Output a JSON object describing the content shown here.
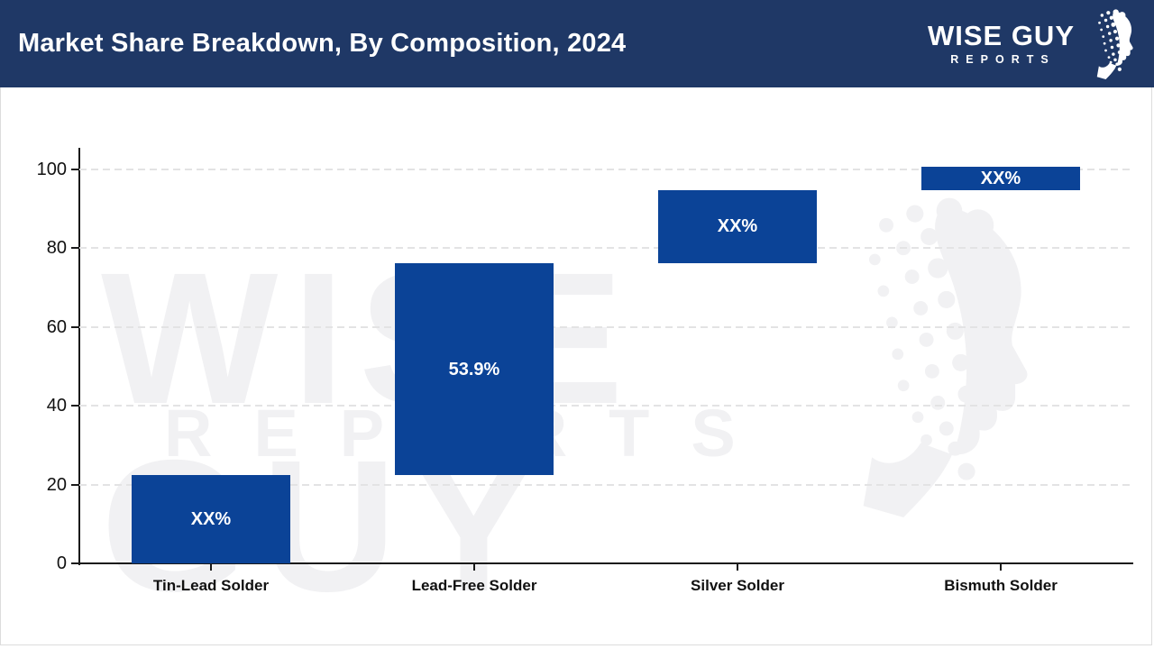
{
  "header": {
    "title": "Market Share Breakdown, By Composition, 2024",
    "logo_line1": "WISE GUY",
    "logo_line2": "REPORTS"
  },
  "watermark": {
    "line1": "WISE GUY",
    "line2": "REPORTS"
  },
  "chart_data": {
    "type": "bar",
    "variant": "floating-waterfall",
    "title": "Market Share Breakdown, By Composition, 2024",
    "categories": [
      "Tin-Lead Solder",
      "Lead-Free Solder",
      "Silver Solder",
      "Bismuth Solder"
    ],
    "segments": [
      {
        "category": "Tin-Lead Solder",
        "start": 0,
        "end": 22.3,
        "label": "XX%"
      },
      {
        "category": "Lead-Free Solder",
        "start": 22.3,
        "end": 76.2,
        "label": "53.9%",
        "value": 53.9
      },
      {
        "category": "Silver Solder",
        "start": 76.2,
        "end": 94.6,
        "label": "XX%"
      },
      {
        "category": "Bismuth Solder",
        "start": 94.6,
        "end": 100.5,
        "label": "XX%"
      }
    ],
    "yticks": [
      0,
      20,
      40,
      60,
      80,
      100
    ],
    "ylim": [
      0,
      105
    ],
    "grid": "horizontal-dashed",
    "legend": "none",
    "bar_color": "#0b4397",
    "bar_label_color": "#ffffff"
  },
  "colors": {
    "header_bg": "#1f3866",
    "bar": "#0b4397",
    "axis": "#1a1a1a",
    "grid": "#e3e3e4",
    "page_bg": "#ffffff",
    "watermark": "#f1f1f3",
    "frame_border": "#dcdcdc"
  }
}
